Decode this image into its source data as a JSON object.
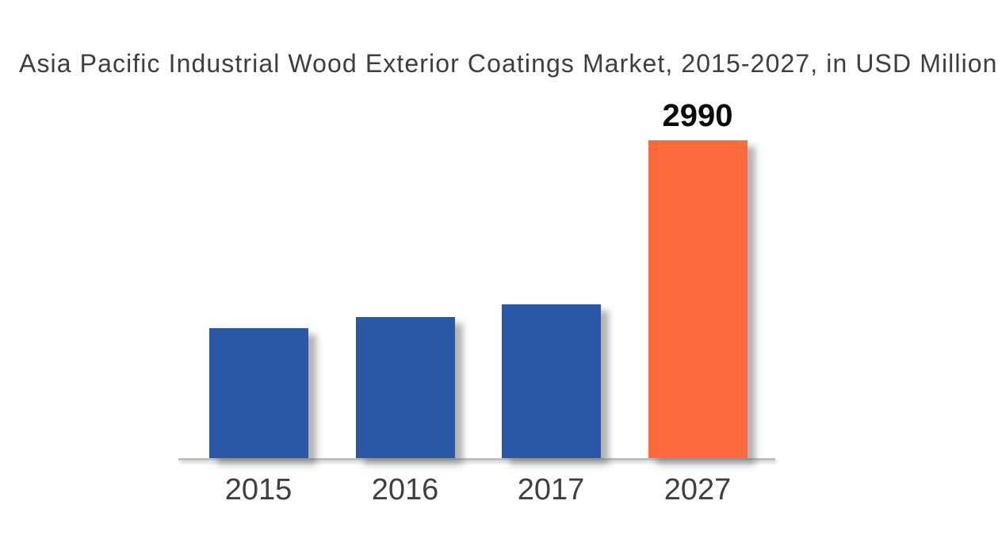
{
  "header": {
    "title": "Asia Pacific Industrial Wood Exterior Coatings Market, 2015-2027, in USD Million"
  },
  "chart_data": {
    "type": "bar",
    "title": "Asia Pacific Industrial Wood Exterior Coatings Market, 2015-2027, in USD Million",
    "categories": [
      "2015",
      "2016",
      "2017",
      "2027"
    ],
    "values": [
      1220,
      1330,
      1450,
      2990
    ],
    "value_labels": [
      "",
      "",
      "",
      "2990"
    ],
    "xlabel": "",
    "ylabel": "",
    "ylim": [
      0,
      2990
    ],
    "grid": false,
    "legend": false,
    "highlight_index": 3,
    "bar_colors": [
      "#2b57a7",
      "#2b57a7",
      "#2b57a7",
      "#fd6a3c"
    ],
    "colors": {
      "bar_default": "#2b57a7",
      "bar_highlight": "#fd6a3c",
      "axis_line": "#bfbfbf",
      "title_text": "#3e3e3e",
      "tick_text": "#3f3f3f",
      "value_text": "#0a0a0a",
      "background": "#ffffff"
    }
  }
}
